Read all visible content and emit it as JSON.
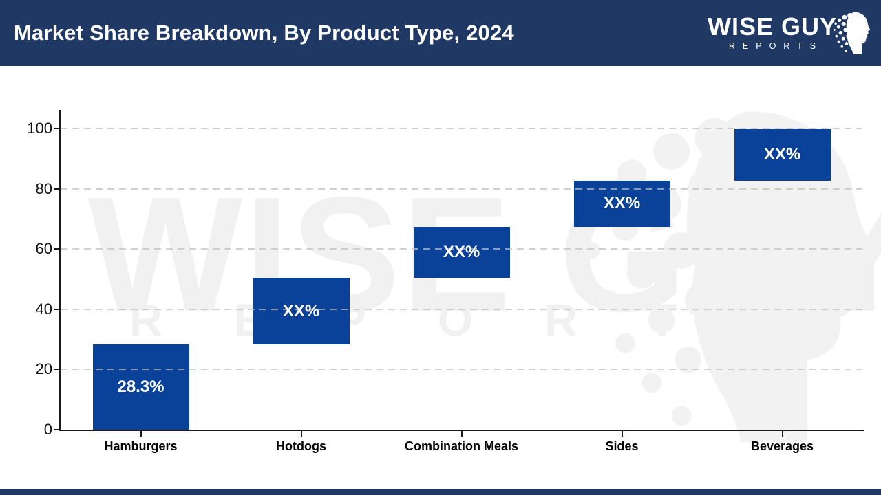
{
  "header": {
    "title": "Market Share Breakdown, By Product Type, 2024",
    "logo": {
      "line1": "WISE GUY",
      "line2": "REPORTS"
    }
  },
  "watermark": {
    "line1": "WISE GUY",
    "line2": "REPORTS"
  },
  "colors": {
    "header_bg": "#1f3864",
    "footer_bg": "#1f3864",
    "bar": "#0a4299",
    "bar_label": "#ffffff",
    "axis": "#1a1a1a",
    "grid": "#bfbfbf",
    "watermark": "#f1f1f1",
    "background": "#ffffff"
  },
  "chart_data": {
    "type": "bar",
    "subtype": "waterfall",
    "title": "Market Share Breakdown, By Product Type, 2024",
    "categories": [
      "Hamburgers",
      "Hotdogs",
      "Combination Meals",
      "Sides",
      "Beverages"
    ],
    "segments": [
      {
        "category": "Hamburgers",
        "label": "28.3%",
        "start": 0,
        "end": 28.3,
        "value": 28.3
      },
      {
        "category": "Hotdogs",
        "label": "XX%",
        "start": 28.3,
        "end": 50.4,
        "value": 22.1
      },
      {
        "category": "Combination Meals",
        "label": "XX%",
        "start": 50.4,
        "end": 67.4,
        "value": 17.0
      },
      {
        "category": "Sides",
        "label": "XX%",
        "start": 67.4,
        "end": 82.6,
        "value": 15.2
      },
      {
        "category": "Beverages",
        "label": "XX%",
        "start": 82.6,
        "end": 100,
        "value": 17.4
      }
    ],
    "xlabel": "",
    "ylabel": "",
    "ylim": [
      0,
      100
    ],
    "yticks": [
      0,
      20,
      40,
      60,
      80,
      100
    ],
    "grid": "horizontal-dashed",
    "legend": "none"
  }
}
